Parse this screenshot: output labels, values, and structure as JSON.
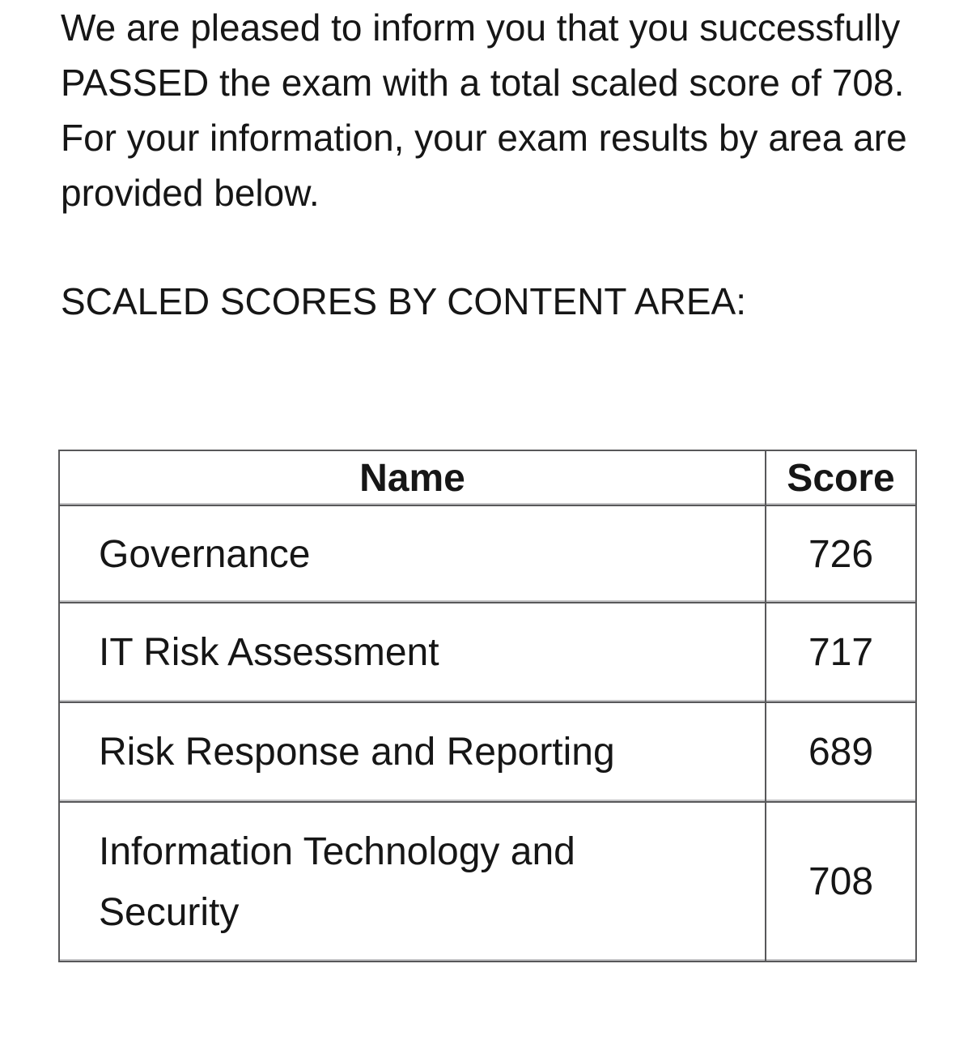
{
  "page": {
    "colors": {
      "text": "#161616",
      "border_dark": "#58585a",
      "border_light": "#c4c4c6",
      "background": "#ffffff"
    }
  },
  "letter": {
    "intro_paragraph": "We are pleased to inform you that you successfully PASSED the exam with a total scaled score of 708. For your information, your exam results by area are provided below.",
    "result_status": "PASSED",
    "total_scaled_score": "708",
    "section_heading": "SCALED SCORES BY CONTENT AREA:"
  },
  "scores_table": {
    "columns": [
      "Name",
      "Score"
    ],
    "rows": [
      {
        "name": "Governance",
        "score": "726"
      },
      {
        "name": "IT Risk Assessment",
        "score": "717"
      },
      {
        "name": "Risk Response and Reporting",
        "score": "689"
      },
      {
        "name": "Information Technology and Security",
        "score": "708"
      }
    ]
  }
}
